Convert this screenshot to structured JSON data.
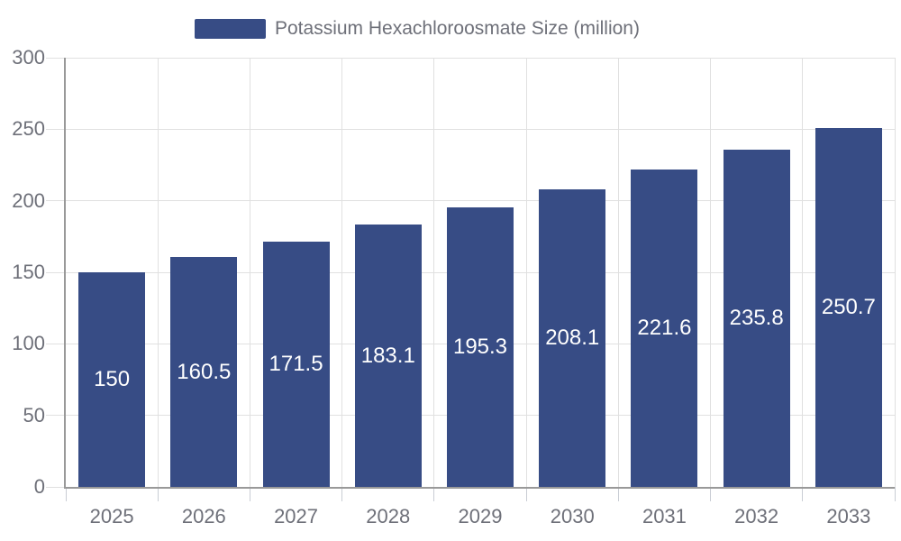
{
  "legend": {
    "label": "Potassium Hexachloroosmate Size (million)"
  },
  "colors": {
    "bg": "#ffffff",
    "bar": "#374c85",
    "grid": "#e0e0e0",
    "tick": "#c9cdd4",
    "axis": "#999999",
    "axis_text": "#6e7079",
    "legend_text": "#6e7079",
    "value_text": "#ffffff"
  },
  "chart_data": {
    "type": "bar",
    "title": "Potassium Hexachloroosmate Size (million)",
    "series_name": "Potassium Hexachloroosmate Size (million)",
    "categories": [
      "2025",
      "2026",
      "2027",
      "2028",
      "2029",
      "2030",
      "2031",
      "2032",
      "2033"
    ],
    "values": [
      150,
      160.5,
      171.5,
      183.1,
      195.3,
      208.1,
      221.6,
      235.8,
      250.7
    ],
    "value_labels": [
      "150",
      "160.5",
      "171.5",
      "183.1",
      "195.3",
      "208.1",
      "221.6",
      "235.8",
      "250.7"
    ],
    "xlabel": "",
    "ylabel": "",
    "ylim": [
      0,
      300
    ],
    "yticks": [
      0,
      50,
      100,
      150,
      200,
      250,
      300
    ],
    "grid": true,
    "legend_position": "top",
    "value_label_position": "inside-center"
  }
}
